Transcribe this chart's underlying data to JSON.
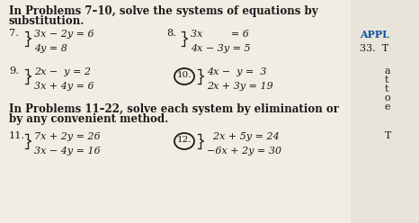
{
  "bg_color": "#e8e4da",
  "title1": "In Problems 7–10, solve the systems of equations by",
  "title2": "substitution.",
  "title3": "In Problems 11–22, solve each system by elimination or",
  "title4": "by any convenient method.",
  "p7_label": "7.",
  "p7_eq1": "3x − 2y = 6",
  "p7_eq2": "4y = 8",
  "p8_label": "8.",
  "p8_eq1": "3x         = 6",
  "p8_eq2": "4x − 3y = 5",
  "p9_label": "9.",
  "p9_eq1": "2x −  y = 2",
  "p9_eq2": "3x + 4y = 6",
  "p10_label": "10.",
  "p10_eq1": "4x −  y =  3",
  "p10_eq2": "2x + 3y = 19",
  "p11_label": "11.",
  "p11_eq1": "7x + 2y = 26",
  "p11_eq2": "3x − 4y = 16",
  "p12_label": "12.",
  "p12_eq1": "  2x + 5y = 24",
  "p12_eq2": "−6x + 2y = 30",
  "appl_label": "APPL",
  "label_33": "33.  T",
  "right_a": "a",
  "right_t1": "t",
  "right_t2": "t",
  "right_o": "o",
  "right_e": "e",
  "right_T": "T",
  "fs_title": 8.5,
  "fs_label": 8.2,
  "fs_eq": 8.0,
  "text_color": "#1a1a1a",
  "blue_color": "#1655a0"
}
